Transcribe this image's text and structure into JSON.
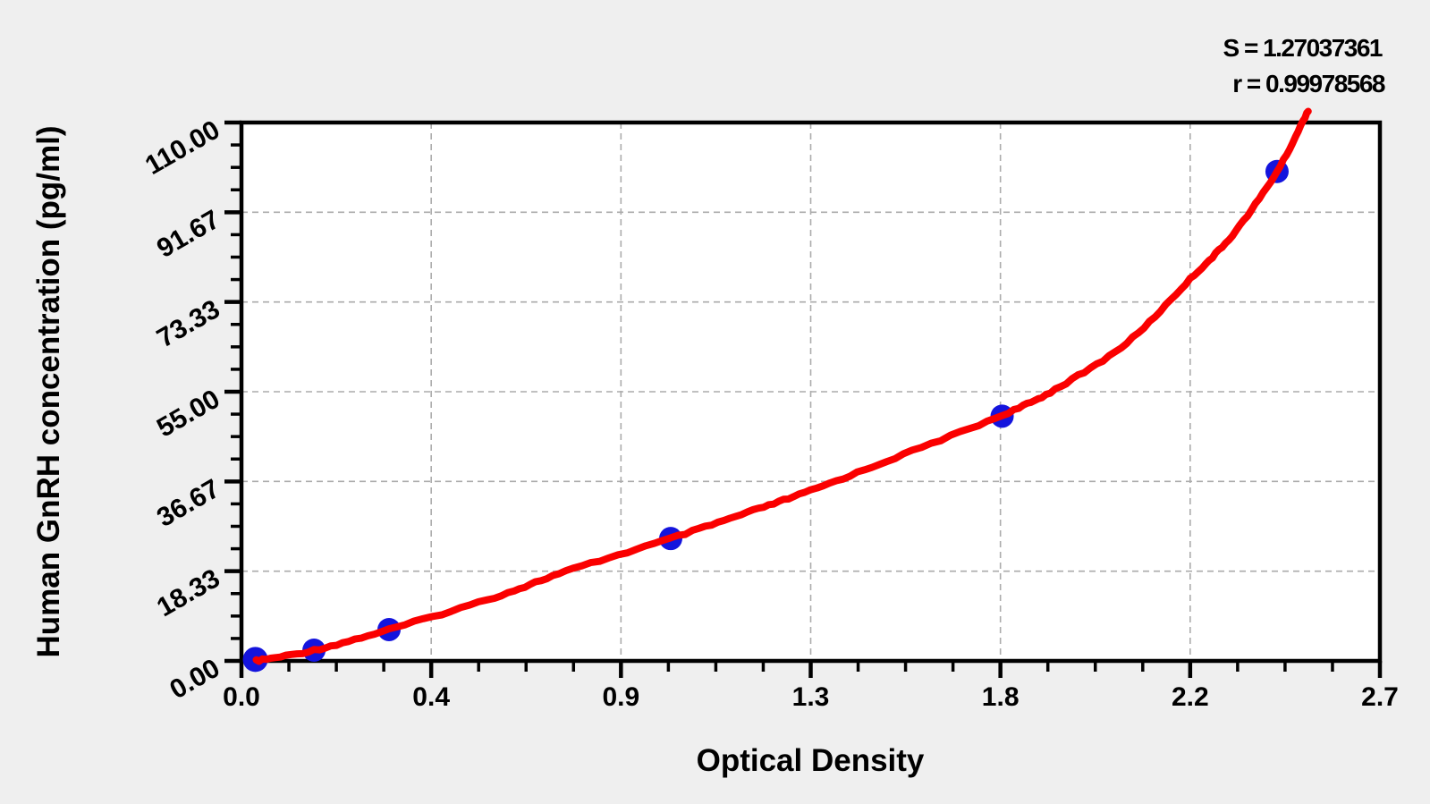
{
  "chart_data": {
    "type": "scatter",
    "title": "",
    "xlabel": "Optical Density",
    "ylabel": "Human GnRH concentration (pg/ml)",
    "xlim": [
      0,
      2.7
    ],
    "ylim": [
      0,
      110
    ],
    "x_axis": {
      "major_tick_values": [
        0,
        0.45,
        0.9,
        1.35,
        1.8,
        2.25,
        2.7
      ],
      "major_tick_labels": [
        "0.0",
        "0.4",
        "0.9",
        "1.3",
        "1.8",
        "2.2",
        "2.7"
      ],
      "minor_ticks_per_interval": 3
    },
    "y_axis": {
      "major_tick_values": [
        0,
        18.3333,
        36.6667,
        55,
        73.3333,
        91.6667,
        110
      ],
      "major_tick_labels": [
        "0.00",
        "18.33",
        "36.67",
        "55.00",
        "73.33",
        "91.67",
        "110.00"
      ],
      "minor_ticks_per_interval": 3,
      "tick_label_angle_deg": -30
    },
    "grid": {
      "show": true,
      "style": "dashed",
      "at": "major-ticks",
      "color": "#ababab"
    },
    "legend": {
      "show": false
    },
    "series": [
      {
        "name": "standard-points",
        "type": "scatter",
        "color": "#1414dd",
        "points": [
          [
            0.033,
            0.3
          ],
          [
            0.172,
            2.2
          ],
          [
            0.35,
            6.4
          ],
          [
            1.018,
            25.0
          ],
          [
            1.804,
            50.0
          ],
          [
            2.456,
            100.0
          ]
        ]
      },
      {
        "name": "fitted-curve",
        "type": "line",
        "color": "#fa0000",
        "points": [
          [
            0.035,
            0.0
          ],
          [
            0.172,
            2.2
          ],
          [
            0.35,
            6.4
          ],
          [
            0.6,
            13.0
          ],
          [
            0.77,
            18.3
          ],
          [
            1.018,
            25.0
          ],
          [
            1.2,
            30.3
          ],
          [
            1.35,
            34.8
          ],
          [
            1.55,
            41.5
          ],
          [
            1.804,
            50.2
          ],
          [
            1.93,
            55.5
          ],
          [
            2.1,
            65.0
          ],
          [
            2.25,
            78.0
          ],
          [
            2.35,
            87.0
          ],
          [
            2.456,
            100.0
          ],
          [
            2.53,
            112.5
          ]
        ]
      }
    ],
    "annotations": {
      "s_label": "S = 1.27037361",
      "r_label": "r = 0.99978568"
    },
    "colors": {
      "page_background": "#efefef",
      "plot_background": "#ffffff",
      "axis": "#000000",
      "curve": "#fa0000",
      "points": "#1414dd",
      "grid": "#ababab"
    }
  }
}
